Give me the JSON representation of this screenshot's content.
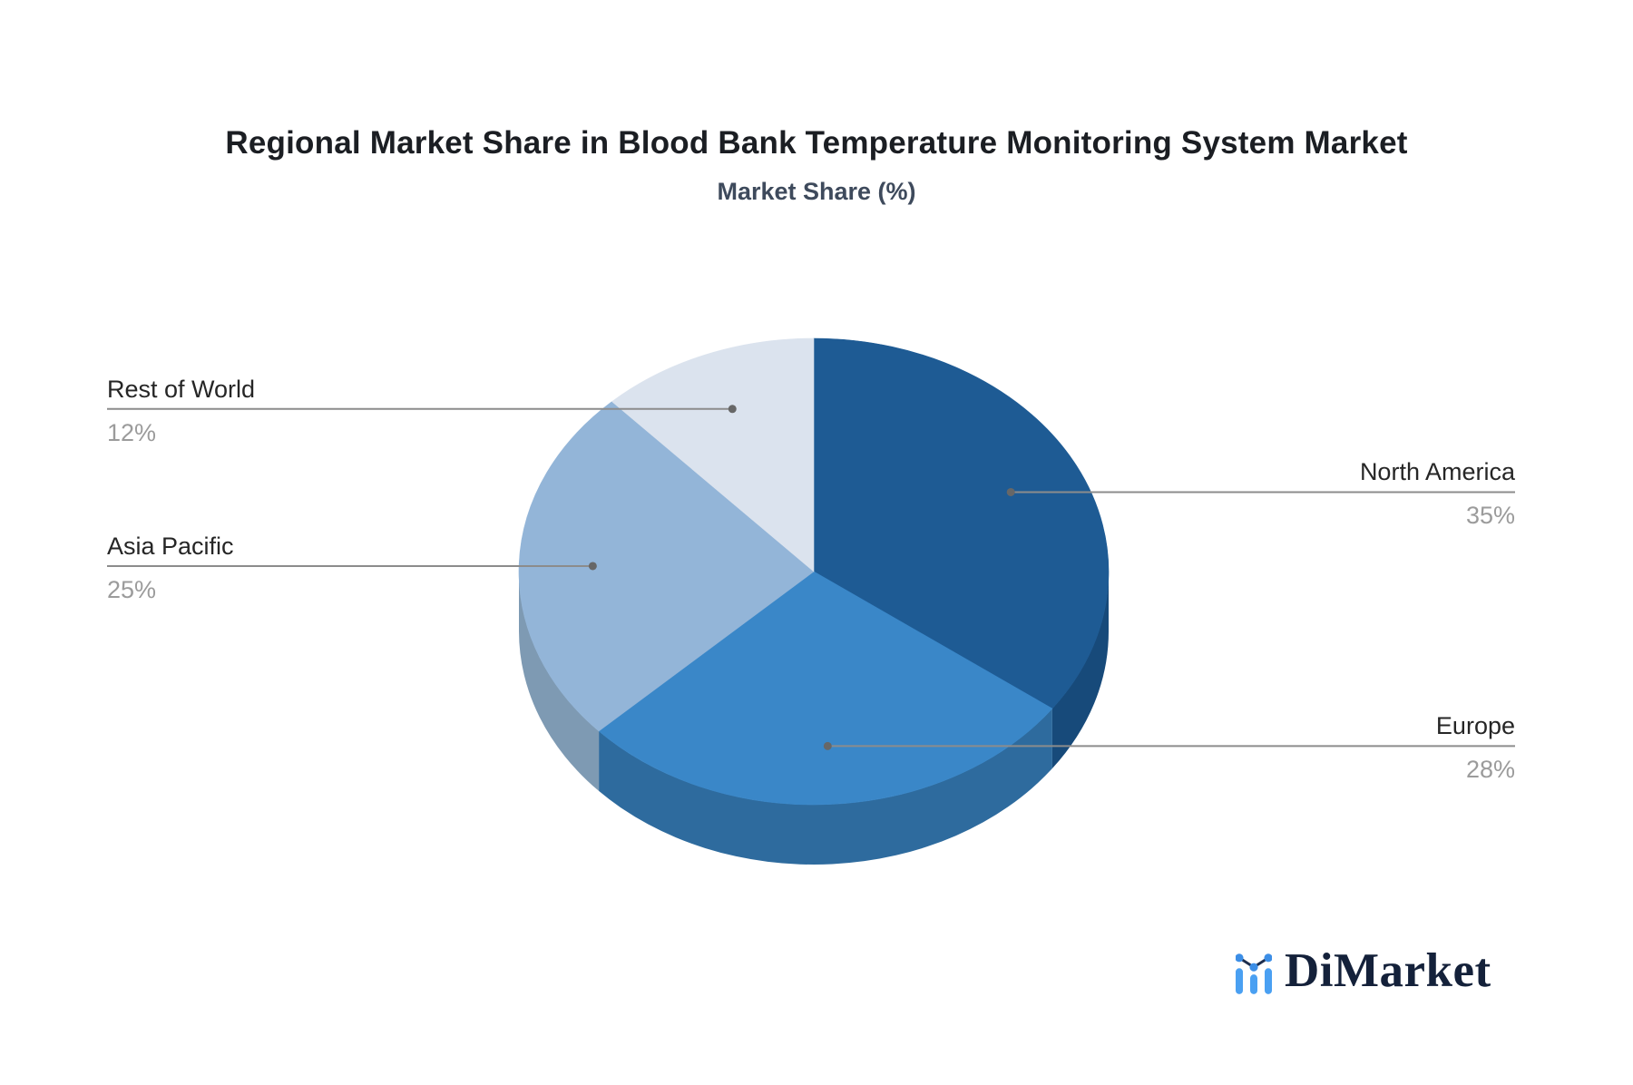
{
  "title": "Regional Market Share in Blood Bank Temperature Monitoring System Market",
  "subtitle": "Market Share (%)",
  "brand": {
    "name": "DiMarket",
    "bar_color": "#4aa0f2",
    "dot_color": "#3c8ee6",
    "line_color": "#1d2e4e",
    "text_color": "#14213a"
  },
  "colors": {
    "background": "#ffffff",
    "leader_line": "#8c8c8c",
    "leader_dot": "#676767",
    "label_text": "#262626",
    "pct_text": "#9b9b9b",
    "title_text": "#1b1e23",
    "subtitle_text": "#3e4a5c"
  },
  "chart_data": {
    "type": "pie",
    "style": "3d",
    "title": "Regional Market Share in Blood Bank Temperature Monitoring System Market",
    "subtitle": "Market Share (%)",
    "unit": "%",
    "start_angle_deg": 0,
    "direction": "clockwise",
    "legend_position": "none",
    "slices": [
      {
        "label": "North America",
        "value": 35,
        "pct_label": "35%",
        "color": "#1e5b94",
        "side_color": "#174a7a"
      },
      {
        "label": "Europe",
        "value": 28,
        "pct_label": "28%",
        "color": "#3a87c8",
        "side_color": "#2e6b9e"
      },
      {
        "label": "Asia Pacific",
        "value": 25,
        "pct_label": "25%",
        "color": "#93b5d8",
        "side_color": "#7e9ab3"
      },
      {
        "label": "Rest of World",
        "value": 12,
        "pct_label": "12%",
        "color": "#dbe3ee",
        "side_color": "#b3bfce"
      }
    ]
  }
}
